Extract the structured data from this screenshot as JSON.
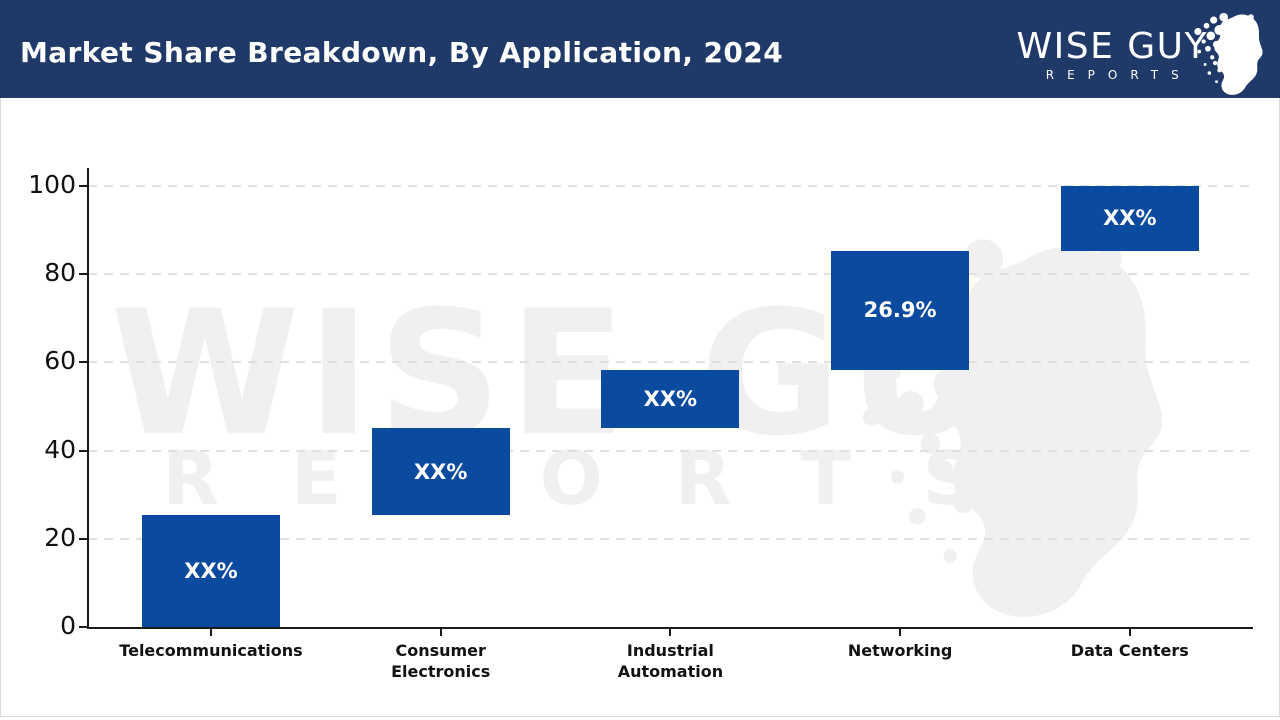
{
  "header": {
    "title": "Market Share Breakdown, By Application, 2024",
    "bg_color": "#1f3a68",
    "logo": {
      "line1": "WISE GUY",
      "line2": "REPORTS"
    }
  },
  "watermark": {
    "line1": "WISE GUY",
    "line2": "REPORTS"
  },
  "chart_data": {
    "type": "bar",
    "subtype": "floating-waterfall",
    "title": "Market Share Breakdown, By Application, 2024",
    "categories": [
      "Telecommunications",
      "Consumer Electronics",
      "Industrial Automation",
      "Networking",
      "Data Centers"
    ],
    "segments": [
      {
        "category": "Telecommunications",
        "start": 0,
        "end": 25.4,
        "label": "XX%"
      },
      {
        "category": "Consumer Electronics",
        "start": 25.4,
        "end": 45.0,
        "label": "XX%"
      },
      {
        "category": "Industrial Automation",
        "start": 45.0,
        "end": 58.3,
        "label": "XX%"
      },
      {
        "category": "Networking",
        "start": 58.3,
        "end": 85.2,
        "label": "26.9%"
      },
      {
        "category": "Data Centers",
        "start": 85.2,
        "end": 100.0,
        "label": "XX%"
      }
    ],
    "tick_label_lines": [
      [
        "Telecommunications"
      ],
      [
        "Consumer",
        "Electronics"
      ],
      [
        "Industrial",
        "Automation"
      ],
      [
        "Networking"
      ],
      [
        "Data Centers"
      ]
    ],
    "y_ticks": [
      0,
      20,
      40,
      60,
      80,
      100
    ],
    "ylim": [
      0,
      104
    ],
    "grid": "horizontal-dashed",
    "legend": "none",
    "bar_color": "#0a4a9f",
    "bar_label_color": "#ffffff",
    "axis_color": "#1a1a1a"
  }
}
